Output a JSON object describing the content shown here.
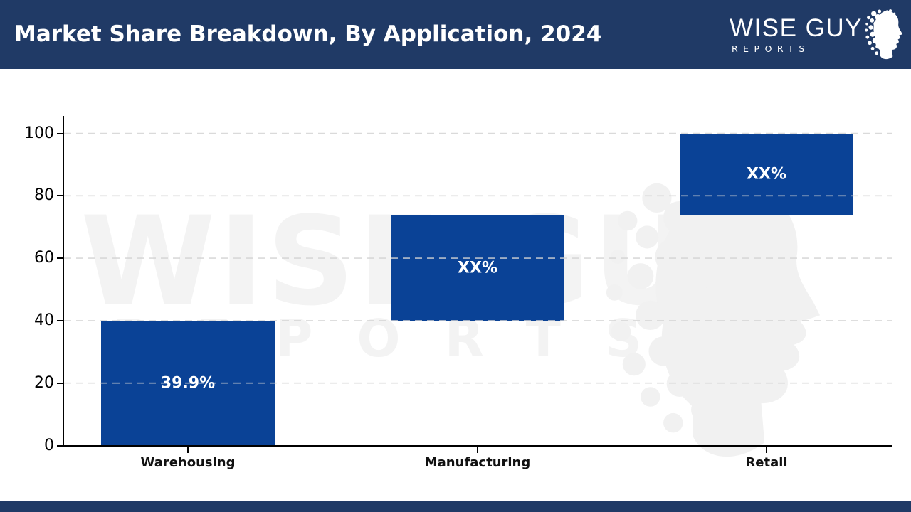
{
  "header": {
    "title": "Market Share Breakdown, By Application, 2024",
    "logo": {
      "name": "WISE GUY",
      "subtitle": "REPORTS"
    }
  },
  "watermark": {
    "line1": "WISE GUY",
    "line2": "REPORTS"
  },
  "footer": {
    "text": ""
  },
  "chart_data": {
    "type": "waterfall_bar",
    "title": "Market Share Breakdown, By Application, 2024",
    "categories": [
      "Warehousing",
      "Manufacturing",
      "Retail"
    ],
    "segments": [
      {
        "category": "Warehousing",
        "start": 0,
        "end": 39.9,
        "label": "39.9%"
      },
      {
        "category": "Manufacturing",
        "start": 39.9,
        "end": 73.9,
        "label": "XX%"
      },
      {
        "category": "Retail",
        "start": 73.9,
        "end": 100,
        "label": "XX%"
      }
    ],
    "yticks": [
      0,
      20,
      40,
      60,
      80,
      100
    ],
    "ylim": [
      0,
      105.6
    ],
    "xlabel": "",
    "ylabel": "",
    "legend": "none",
    "grid": "horizontal-dashed",
    "bar_color": "#0a4296",
    "bar_label_color": "#ffffff"
  },
  "colors": {
    "header_bg": "#203a66",
    "footer_bg": "#203a66",
    "bar": "#0a4296",
    "grid_line": "#d4d4d4",
    "axis": "#000000",
    "watermark": "#f3f3f3"
  }
}
